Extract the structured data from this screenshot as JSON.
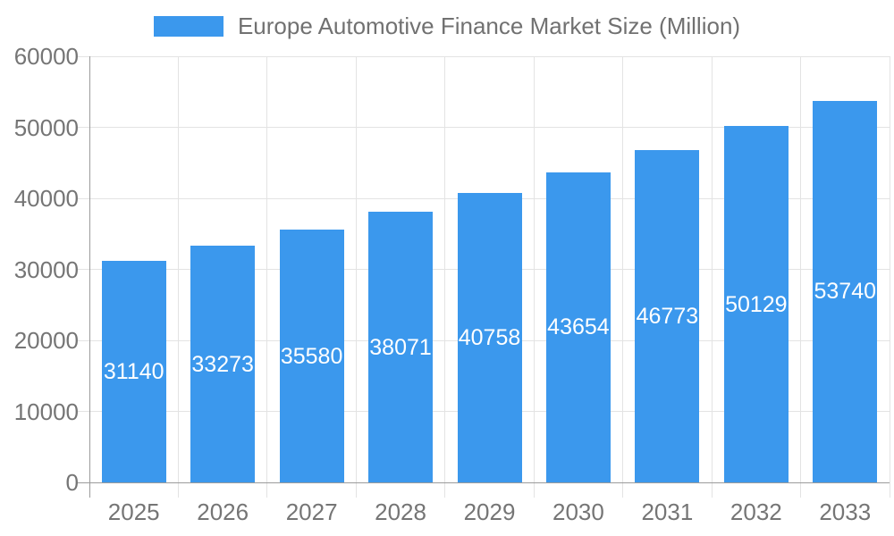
{
  "legend": {
    "label": "Europe Automotive Finance Market Size (Million)"
  },
  "colors": {
    "bar": "#3b98ed",
    "axis_line": "#9b9b9b",
    "gridline": "#e3e3e3",
    "tick_label_text": "#757575",
    "legend_text": "#717171",
    "data_label_text": "#ffffff",
    "background": "#ffffff"
  },
  "chart_data": {
    "type": "bar",
    "title": "Europe Automotive Finance Market Size (Million)",
    "categories": [
      "2025",
      "2026",
      "2027",
      "2028",
      "2029",
      "2030",
      "2031",
      "2032",
      "2033"
    ],
    "values": [
      31140,
      33273,
      35580,
      38071,
      40758,
      43654,
      46773,
      50129,
      53740
    ],
    "series": [
      {
        "name": "Europe Automotive Finance Market Size (Million)",
        "values": [
          31140,
          33273,
          35580,
          38071,
          40758,
          43654,
          46773,
          50129,
          53740
        ]
      }
    ],
    "xlabel": "",
    "ylabel": "",
    "ylim": [
      0,
      60000
    ],
    "ytick_step": 10000,
    "ytick_labels": [
      "0",
      "10000",
      "20000",
      "30000",
      "40000",
      "50000",
      "60000"
    ],
    "grid": true,
    "legend_position": "top-center",
    "data_labels_position": "inside-center"
  }
}
